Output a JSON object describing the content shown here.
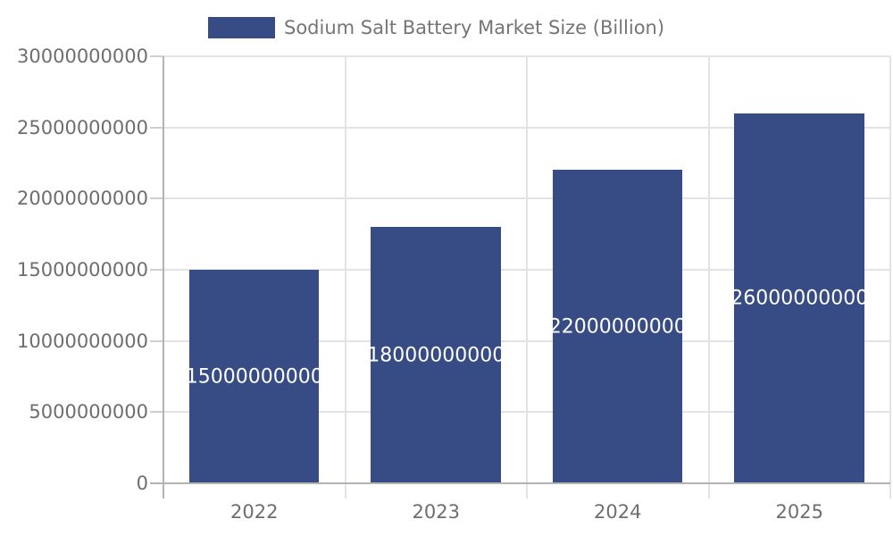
{
  "legend": {
    "label": "Sodium Salt Battery Market Size (Billion)"
  },
  "chart_data": {
    "type": "bar",
    "title": "",
    "legend_entries": [
      "Sodium Salt Battery Market Size (Billion)"
    ],
    "legend_position": "top",
    "categories": [
      "2022",
      "2023",
      "2024",
      "2025"
    ],
    "values": [
      15000000000,
      18000000000,
      22000000000,
      26000000000
    ],
    "data_labels": [
      "15000000000",
      "18000000000",
      "22000000000",
      "26000000000"
    ],
    "xlabel": "",
    "ylabel": "",
    "ylim": [
      0,
      30000000000
    ],
    "yticks": [
      0,
      5000000000,
      10000000000,
      15000000000,
      20000000000,
      25000000000,
      30000000000
    ],
    "ytick_labels": [
      "0",
      "5000000000",
      "10000000000",
      "15000000000",
      "20000000000",
      "25000000000",
      "30000000000"
    ],
    "grid": true
  },
  "colors": {
    "bar": "#374B85",
    "grid": "#e3e3e3",
    "tick": "#cfcfcf",
    "axis": "#b3b3b3",
    "tick_text": "#6e6e6e",
    "legend_text": "#757575",
    "bar_label_text": "#ffffff",
    "background": "#ffffff"
  }
}
